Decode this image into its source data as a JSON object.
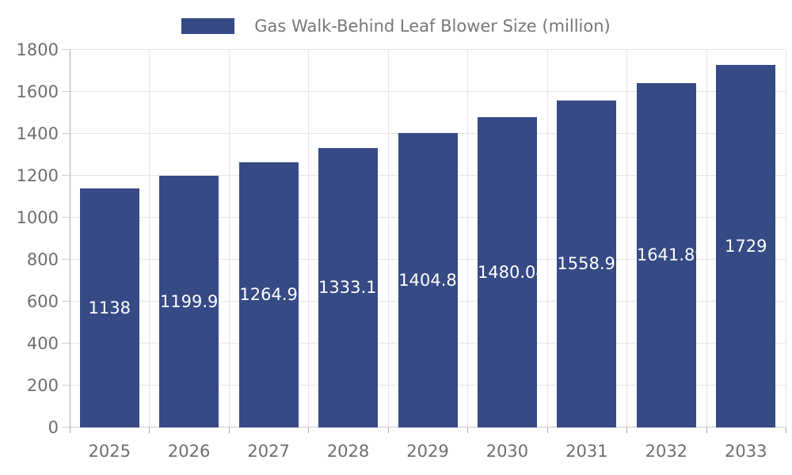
{
  "legend": {
    "label": "Gas Walk-Behind Leaf Blower Size (million)"
  },
  "chart_data": {
    "type": "bar",
    "title": "Gas Walk-Behind Leaf Blower Size (million)",
    "categories": [
      "2025",
      "2026",
      "2027",
      "2028",
      "2029",
      "2030",
      "2031",
      "2032",
      "2033"
    ],
    "values": [
      1138,
      1199.9,
      1264.9,
      1333.15,
      1404.8,
      1480.04,
      1558.94,
      1641.89,
      1729
    ],
    "value_labels": [
      "1138",
      "1199.9",
      "1264.9",
      "1333.15",
      "1404.8",
      "1480.04",
      "1558.94",
      "1641.89",
      "1729"
    ],
    "xlabel": "",
    "ylabel": "",
    "ylim": [
      0,
      1800
    ],
    "yticks": [
      0,
      200,
      400,
      600,
      800,
      1000,
      1200,
      1400,
      1600,
      1800
    ],
    "grid": true,
    "legend_position": "top",
    "bar_color": "#364a85",
    "value_label_color": "#ffffff",
    "axis_text_color": "#6e6e6e",
    "gridline_color": "#e5e5e5"
  }
}
